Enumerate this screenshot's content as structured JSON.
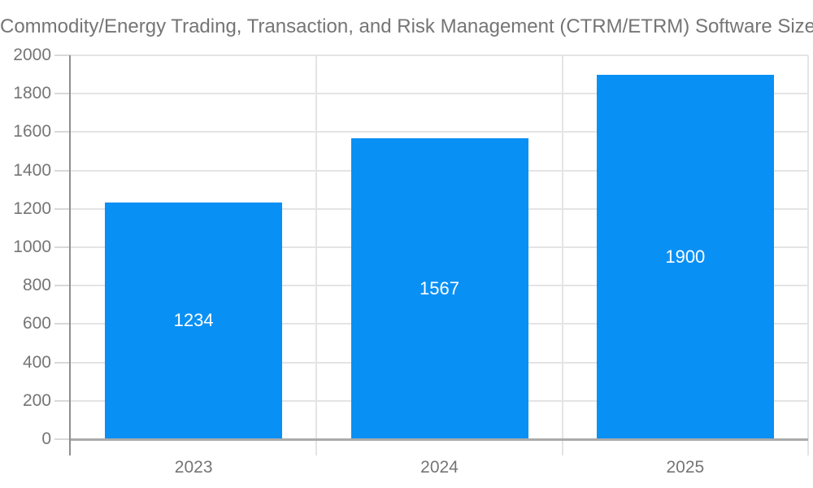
{
  "chart_data": {
    "type": "bar",
    "title": "Commodity/Energy Trading, Transaction, and Risk Management (CTRM/ETRM) Software Size",
    "categories": [
      "2023",
      "2024",
      "2025"
    ],
    "values": [
      1234,
      1567,
      1900
    ],
    "bar_value_labels": [
      "1234",
      "1567",
      "1900"
    ],
    "ytick_labels": [
      "0",
      "200",
      "400",
      "600",
      "800",
      "1000",
      "1200",
      "1400",
      "1600",
      "1800",
      "2000"
    ],
    "ylim": [
      0,
      2000
    ],
    "ytick_interval": 200,
    "grid": true,
    "legend_position": "none",
    "xlabel": "",
    "ylabel": "",
    "colors": {
      "bar": "#0990f5",
      "bar_label": "#ffffff",
      "axis_text": "#757575",
      "title_text": "#757575",
      "gridline": "#e4e4e4",
      "tick": "#d9d9d9",
      "y_axis_line": "#8f8f8f",
      "x_axis_line": "#ababab"
    }
  }
}
